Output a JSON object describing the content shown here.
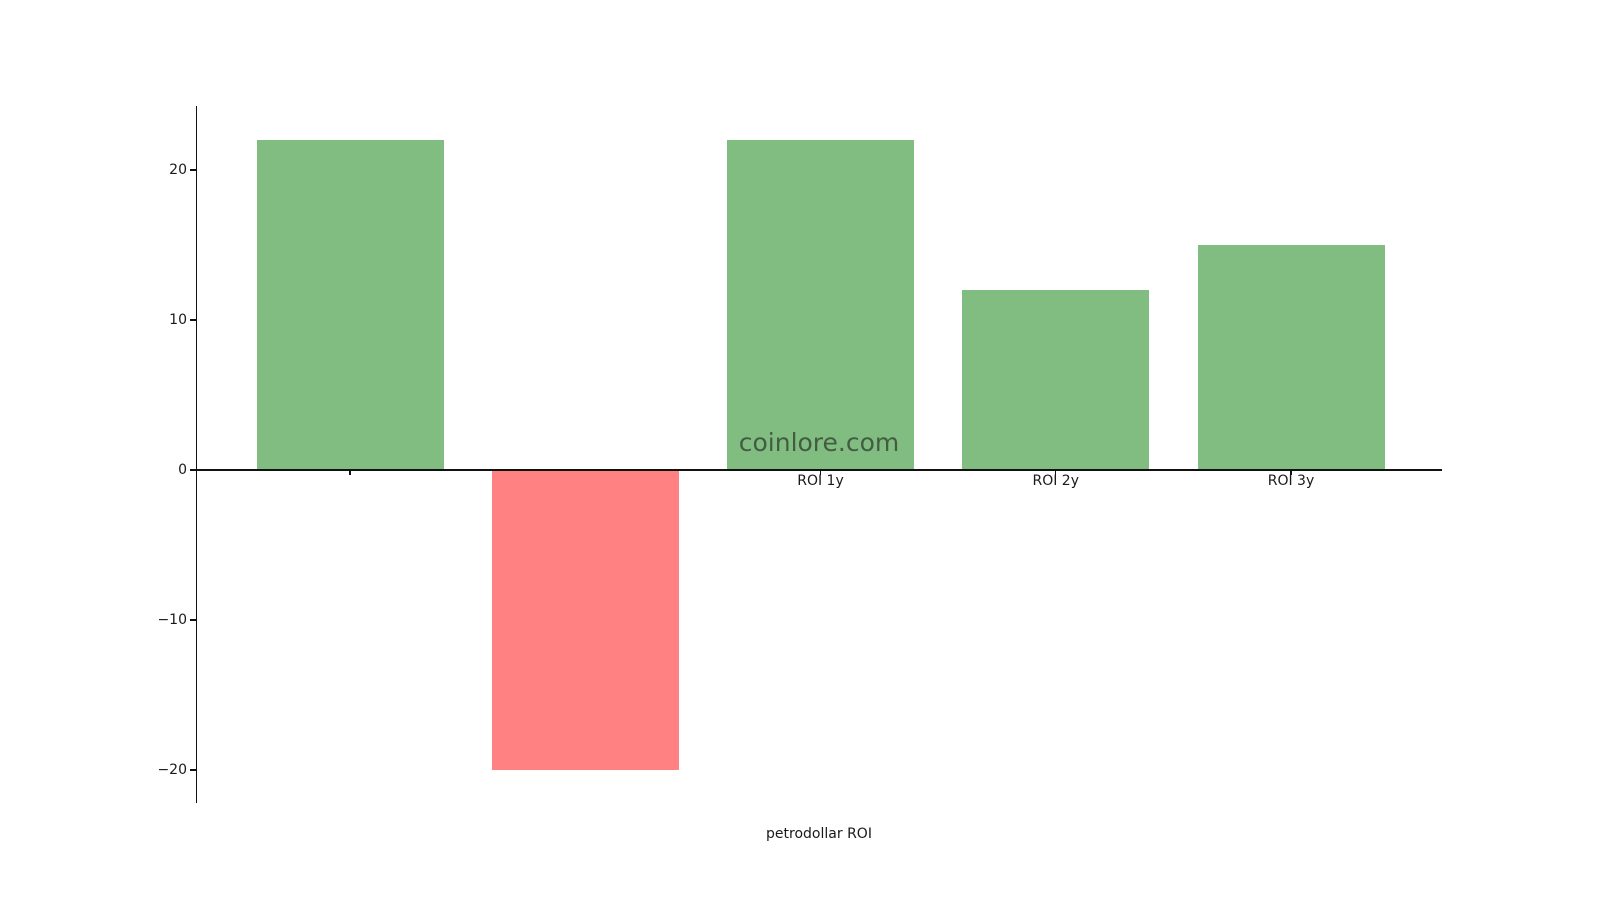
{
  "chart_data": {
    "type": "bar",
    "categories": [
      "",
      "",
      "ROI 1y",
      "ROI 2y",
      "ROI 3y"
    ],
    "values": [
      22,
      -20,
      22,
      12,
      15
    ],
    "title": "",
    "xlabel": "petrodollar ROI",
    "ylabel": "",
    "yticks": [
      20,
      10,
      0,
      -10,
      -20
    ],
    "ytick_labels": [
      "20",
      "10",
      "0",
      "−10",
      "−20"
    ],
    "ylim": [
      -22.2,
      24.3
    ],
    "grid": false,
    "legend_position": "none",
    "watermark": "coinlore.com",
    "colors": {
      "positive_bar": "#81bd81",
      "negative_bar": "#ff8181",
      "axis": "#111111",
      "tick_text": "#1a1a1a",
      "watermark_text": "rgba(20,20,20,0.57)"
    }
  }
}
